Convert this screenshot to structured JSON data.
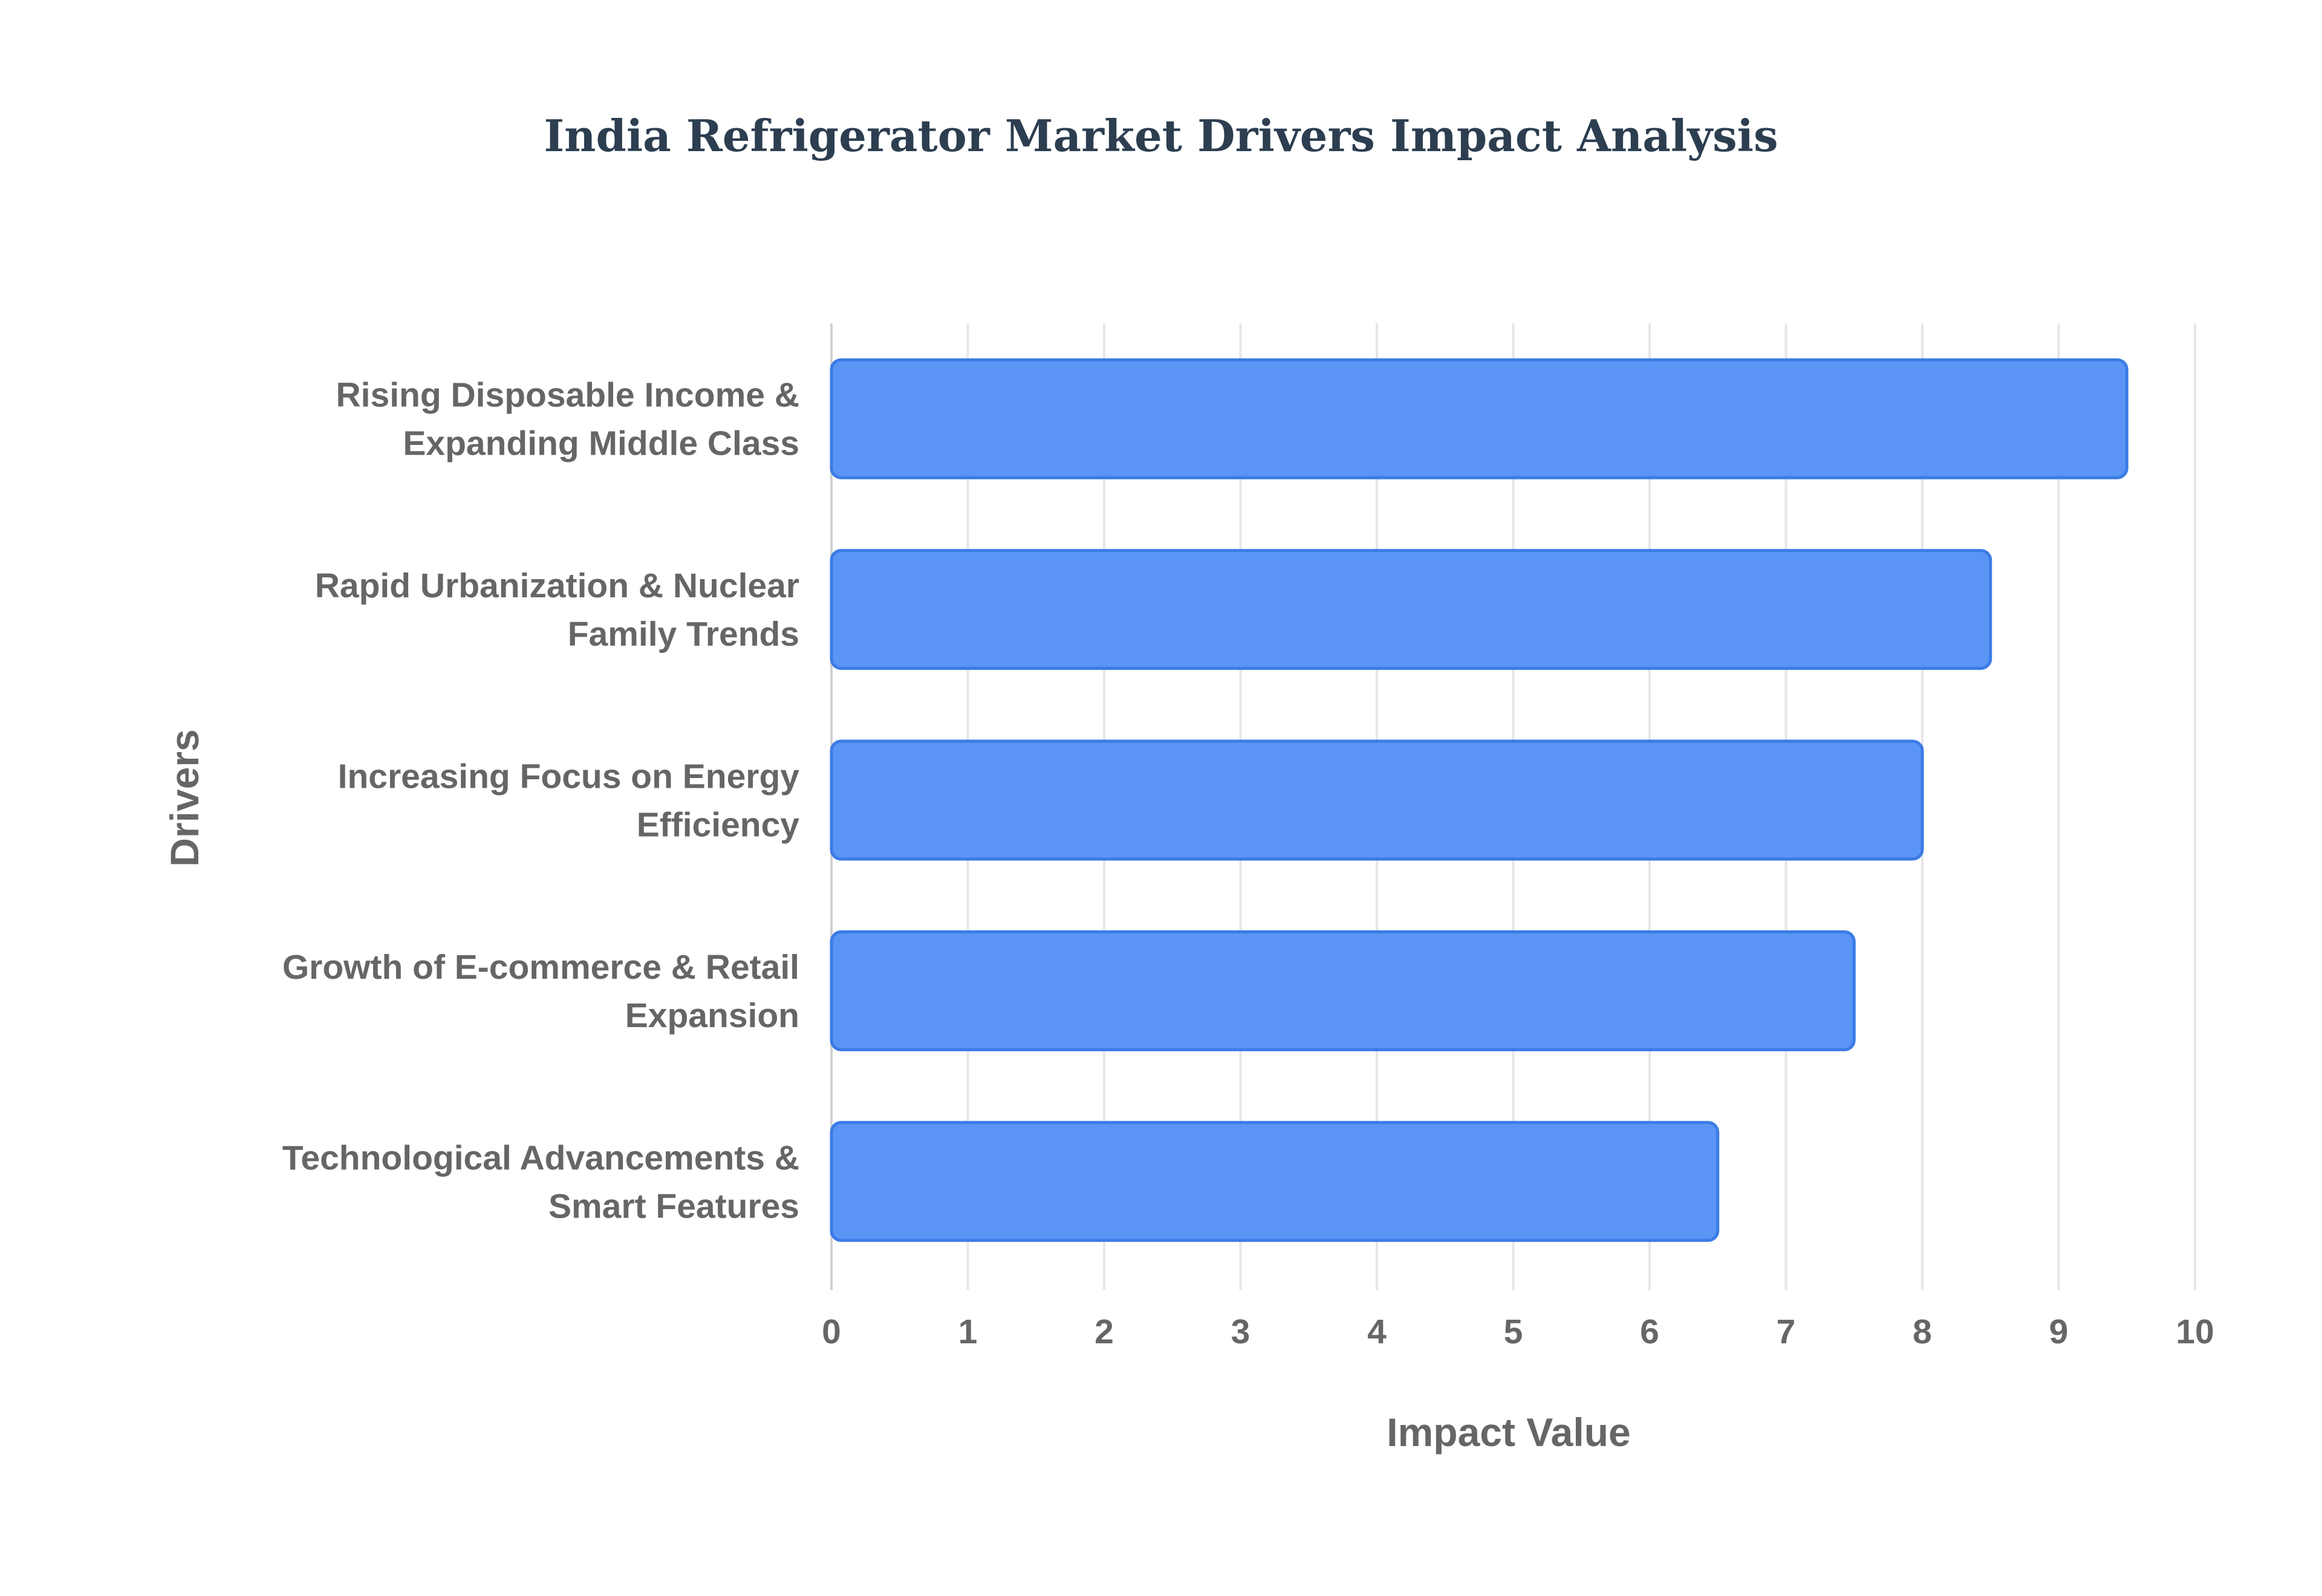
{
  "chart_data": {
    "type": "bar",
    "orientation": "horizontal",
    "title": "India Refrigerator Market Drivers Impact Analysis",
    "xlabel": "Impact Value",
    "ylabel": "Drivers",
    "categories": [
      [
        "Rising Disposable Income &",
        "Expanding Middle Class"
      ],
      [
        "Rapid Urbanization & Nuclear",
        "Family Trends"
      ],
      [
        "Increasing Focus on Energy",
        "Efficiency"
      ],
      [
        "Growth of E-commerce & Retail",
        "Expansion"
      ],
      [
        "Technological Advancements &",
        "Smart Features"
      ]
    ],
    "values": [
      9.5,
      8.5,
      8.0,
      7.5,
      6.5
    ],
    "xlim": [
      0,
      10
    ],
    "xticks": [
      0,
      1,
      2,
      3,
      4,
      5,
      6,
      7,
      8,
      9,
      10
    ],
    "grid": "vertical",
    "legend": "none",
    "colors": {
      "bar_fill": "#5a95f5",
      "bar_stroke": "#3b7be6",
      "title": "#2c3e50",
      "text": "#666666",
      "grid": "#e6e6e6",
      "axis": "#d0d0d0"
    }
  }
}
